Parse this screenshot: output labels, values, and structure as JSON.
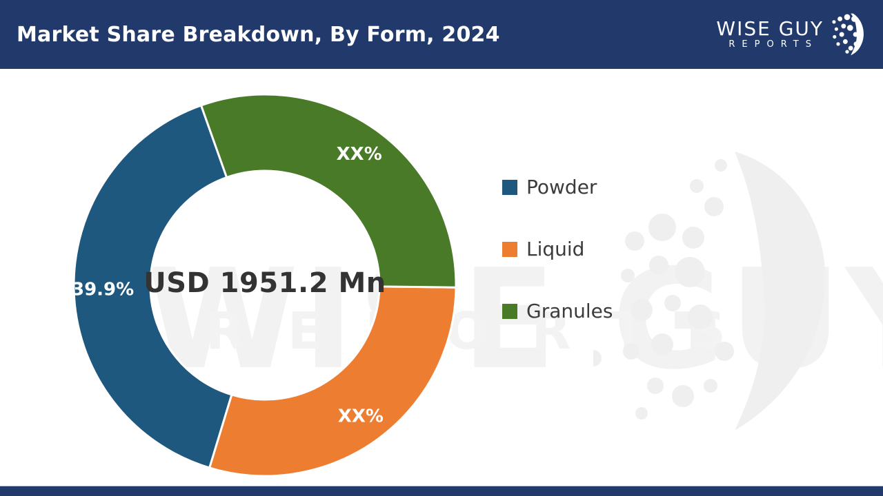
{
  "header": {
    "title": "Market Share Breakdown, By Form, 2024",
    "bg_color": "#213A6B",
    "logo": {
      "wordmark": "WISE GUY",
      "subtitle": "REPORTS"
    }
  },
  "chart_data": {
    "type": "pie",
    "subtype": "donut",
    "title": "Market Share Breakdown, By Form, 2024",
    "center_label": "USD 1951.2 Mn",
    "legend_position": "right",
    "start_angle_deg": 109.5,
    "direction": "counterclockwise",
    "categories": [
      "Powder",
      "Liquid",
      "Granules"
    ],
    "displayed_values": [
      "39.9%",
      "XX%",
      "XX%"
    ],
    "segments": [
      {
        "name": "Powder",
        "label": "39.9%",
        "pct": 39.9,
        "color": "#1F587E"
      },
      {
        "name": "Liquid",
        "label": "XX%",
        "pct": 29.5,
        "color": "#ED7D31"
      },
      {
        "name": "Granules",
        "label": "XX%",
        "pct": 30.6,
        "color": "#497A28"
      }
    ]
  },
  "watermark": {
    "wordmark": "WISE GUY",
    "subtitle": "REPORTS"
  },
  "footer": {
    "bg_color": "#213A6B"
  }
}
